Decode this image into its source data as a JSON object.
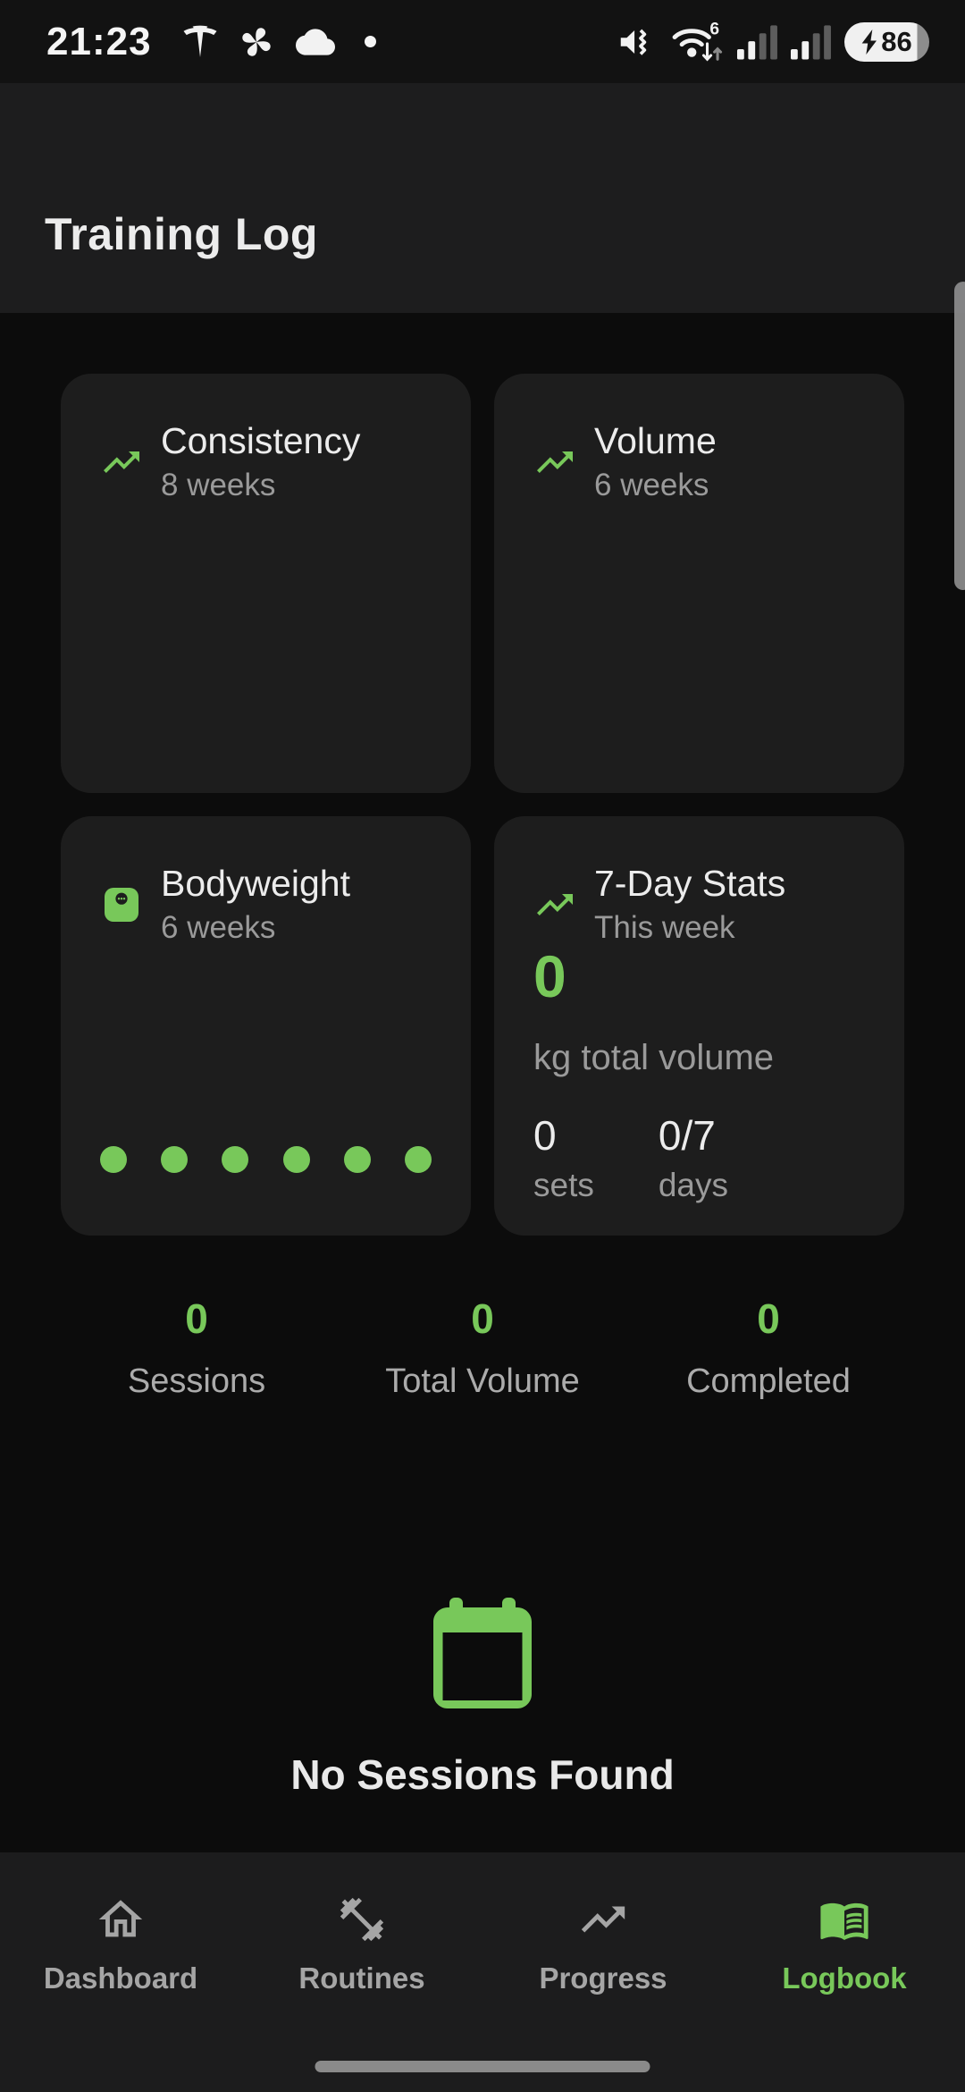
{
  "colors": {
    "accent_green": "#78c85a",
    "page_bg": "#0c0c0c",
    "card_bg": "#1d1d1d",
    "header_bg": "#1d1d1e",
    "status_bar_bg": "#121212",
    "nav_bg": "#1c1c1d"
  },
  "status_bar": {
    "time": "21:23",
    "battery_percent": "86",
    "battery_level": 86,
    "wifi_standard": "6",
    "icons": [
      "tesla",
      "fan",
      "cloud",
      "notification-dot",
      "mute-vibrate",
      "wifi-6",
      "signal-bars",
      "signal-bars",
      "battery"
    ]
  },
  "header": {
    "title": "Training Log"
  },
  "cards": [
    {
      "icon": "trending-up",
      "title": "Consistency",
      "subtitle": "8 weeks"
    },
    {
      "icon": "trending-up",
      "title": "Volume",
      "subtitle": "6 weeks"
    },
    {
      "icon": "scale",
      "title": "Bodyweight",
      "subtitle": "6 weeks",
      "dots": 6
    },
    {
      "icon": "trending-up",
      "title": "7-Day Stats",
      "subtitle": "This week",
      "primary_value": "0",
      "primary_label": "kg total volume",
      "substats": [
        {
          "value": "0",
          "label": "sets"
        },
        {
          "value": "0/7",
          "label": "days"
        }
      ]
    }
  ],
  "summary_stats": [
    {
      "value": "0",
      "label": "Sessions"
    },
    {
      "value": "0",
      "label": "Total Volume"
    },
    {
      "value": "0",
      "label": "Completed"
    }
  ],
  "empty_state": {
    "icon": "calendar",
    "message": "No Sessions Found"
  },
  "bottom_nav": {
    "items": [
      {
        "label": "Dashboard",
        "icon": "home",
        "active": false
      },
      {
        "label": "Routines",
        "icon": "dumbbell",
        "active": false
      },
      {
        "label": "Progress",
        "icon": "trending-up",
        "active": false
      },
      {
        "label": "Logbook",
        "icon": "book-open",
        "active": true
      }
    ]
  }
}
